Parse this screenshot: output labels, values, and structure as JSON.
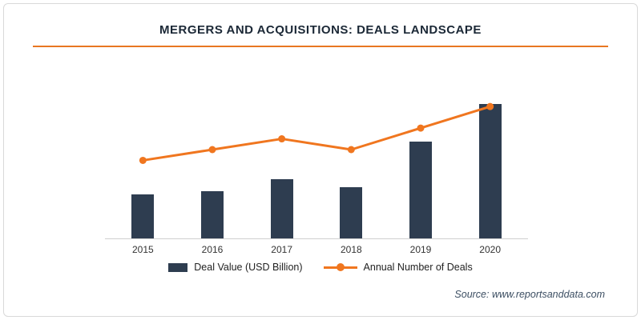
{
  "header": {
    "title": "MERGERS AND ACQUISITIONS: DEALS LANDSCAPE"
  },
  "footer": {
    "source": "Source: www.reportsanddata.com"
  },
  "colors": {
    "bar": "#2e3d50",
    "line": "#f0761f",
    "title_rule": "#e87722",
    "axis": "#cfcfcf",
    "title": "#1b2836"
  },
  "chart_data": {
    "type": "bar+line",
    "title": "MERGERS AND ACQUISITIONS: DEALS LANDSCAPE",
    "categories": [
      "2015",
      "2016",
      "2017",
      "2018",
      "2019",
      "2020"
    ],
    "series": [
      {
        "name": "Deal Value (USD Billion)",
        "type": "bar",
        "color": "#2e3d50",
        "values": [
          33,
          35,
          44,
          38,
          72,
          100
        ]
      },
      {
        "name": "Annual Number of Deals",
        "type": "line",
        "color": "#f0761f",
        "values": [
          58,
          66,
          74,
          66,
          82,
          98
        ]
      }
    ],
    "xlabel": "",
    "ylabel": "",
    "ylim": [
      0,
      110
    ],
    "axis_value_labels_visible": false,
    "grid": false,
    "legend_position": "bottom"
  }
}
